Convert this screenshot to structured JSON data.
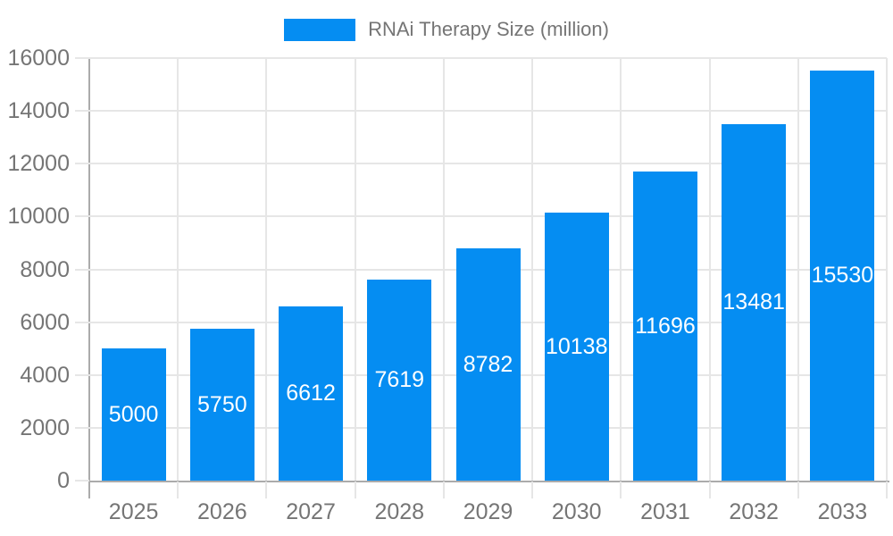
{
  "legend": {
    "label": "RNAi Therapy Size (million)"
  },
  "chart_data": {
    "type": "bar",
    "title": "RNAi Therapy Size (million)",
    "categories": [
      "2025",
      "2026",
      "2027",
      "2028",
      "2029",
      "2030",
      "2031",
      "2032",
      "2033"
    ],
    "series": [
      {
        "name": "RNAi Therapy Size (million)",
        "values": [
          5000,
          5750,
          6612,
          7619,
          8782,
          10138,
          11696,
          13481,
          15530
        ]
      }
    ],
    "bar_value_labels_shown": true,
    "xlabel": "",
    "ylabel": "",
    "ylim": [
      0,
      16000
    ],
    "yticks": [
      0,
      2000,
      4000,
      6000,
      8000,
      10000,
      12000,
      14000,
      16000
    ],
    "grid": true,
    "legend_position": "top-center",
    "colors": {
      "bar": "#058DF2",
      "axis_text": "#757575",
      "value_text": "#FFFFFF",
      "grid_line": "#E6E6E6",
      "axis_line": "#ABABAB",
      "background": "#FFFFFF"
    }
  }
}
